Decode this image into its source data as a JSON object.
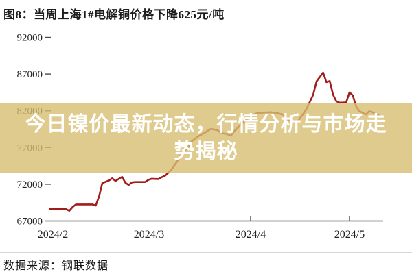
{
  "figure_title": "图8：当周上海1#电解铜价格下降625元/吨",
  "overlay": {
    "full_text": "今日镍价最新动态，行情分析与市场走势揭秘",
    "lines": [
      "今日镍价最新动态，行情分析与市场走",
      "势揭秘"
    ],
    "band_color": "#DECB8D",
    "text_color": "#FFFFFF"
  },
  "source_note": "数据来源：钢联数据",
  "chart_data": {
    "type": "line",
    "title": "当周上海1#电解铜价格下降625元/吨",
    "xlabel": "",
    "ylabel": "",
    "ylim": [
      67000,
      92000
    ],
    "y_ticks": [
      92000,
      87000,
      82000,
      77000,
      72000,
      67000
    ],
    "x_ticks": [
      "2024/2",
      "2024/3",
      "2024/4",
      "2024/5"
    ],
    "grid": false,
    "legend": "none",
    "line_color": "#A31C1C",
    "axis_color": "#4a4a4a",
    "series": [
      {
        "name": "上海1#电解铜价格(元/吨)",
        "points": [
          [
            "2024-01-31",
            68600
          ],
          [
            "2024-02-02",
            68620
          ],
          [
            "2024-02-05",
            68600
          ],
          [
            "2024-02-06",
            68380
          ],
          [
            "2024-02-07",
            68900
          ],
          [
            "2024-02-08",
            69250
          ],
          [
            "2024-02-13",
            69250
          ],
          [
            "2024-02-14",
            69100
          ],
          [
            "2024-02-15",
            70300
          ],
          [
            "2024-02-16",
            72150
          ],
          [
            "2024-02-18",
            72500
          ],
          [
            "2024-02-19",
            72800
          ],
          [
            "2024-02-20",
            72450
          ],
          [
            "2024-02-22",
            73000
          ],
          [
            "2024-02-23",
            72200
          ],
          [
            "2024-02-24",
            71900
          ],
          [
            "2024-02-25",
            72250
          ],
          [
            "2024-02-26",
            72300
          ],
          [
            "2024-02-29",
            72300
          ],
          [
            "2024-03-01",
            72600
          ],
          [
            "2024-03-02",
            72750
          ],
          [
            "2024-03-04",
            72700
          ],
          [
            "2024-03-05",
            72950
          ],
          [
            "2024-03-06",
            73150
          ],
          [
            "2024-03-07",
            73550
          ],
          [
            "2024-03-08",
            74000
          ],
          [
            "2024-03-10",
            75300
          ],
          [
            "2024-03-11",
            76100
          ],
          [
            "2024-03-12",
            76550
          ],
          [
            "2024-03-13",
            77000
          ],
          [
            "2024-03-14",
            77800
          ],
          [
            "2024-03-15",
            78150
          ],
          [
            "2024-03-16",
            78500
          ],
          [
            "2024-03-18",
            79000
          ],
          [
            "2024-03-20",
            79550
          ],
          [
            "2024-03-22",
            79350
          ],
          [
            "2024-03-23",
            79000
          ],
          [
            "2024-03-25",
            78800
          ],
          [
            "2024-03-26",
            78600
          ],
          [
            "2024-03-27",
            79200
          ],
          [
            "2024-03-29",
            80100
          ],
          [
            "2024-03-31",
            80900
          ],
          [
            "2024-04-02",
            81500
          ],
          [
            "2024-04-03",
            81700
          ],
          [
            "2024-04-07",
            81800
          ],
          [
            "2024-04-09",
            81700
          ],
          [
            "2024-04-11",
            81450
          ],
          [
            "2024-04-12",
            80900
          ],
          [
            "2024-04-15",
            80350
          ],
          [
            "2024-04-16",
            81000
          ],
          [
            "2024-04-17",
            81600
          ],
          [
            "2024-04-18",
            82300
          ],
          [
            "2024-04-20",
            84200
          ],
          [
            "2024-04-21",
            86000
          ],
          [
            "2024-04-23",
            87200
          ],
          [
            "2024-04-24",
            85900
          ],
          [
            "2024-04-25",
            86050
          ],
          [
            "2024-04-26",
            84200
          ],
          [
            "2024-04-27",
            83300
          ],
          [
            "2024-04-28",
            83100
          ],
          [
            "2024-04-30",
            83150
          ],
          [
            "2024-05-01",
            84500
          ],
          [
            "2024-05-02",
            84100
          ],
          [
            "2024-05-03",
            82600
          ],
          [
            "2024-05-04",
            81950
          ],
          [
            "2024-05-06",
            81500
          ],
          [
            "2024-05-07",
            81950
          ],
          [
            "2024-05-08",
            81800
          ],
          [
            "2024-05-09",
            81500
          ],
          [
            "2024-05-10",
            81350
          ]
        ]
      }
    ]
  }
}
